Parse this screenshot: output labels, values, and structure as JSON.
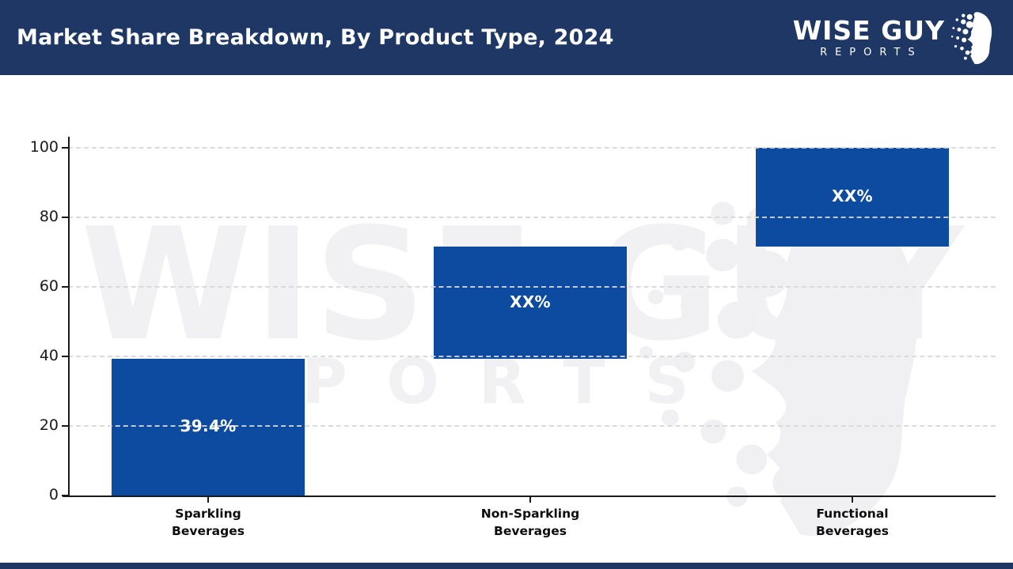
{
  "header": {
    "title": "Market Share Breakdown, By Product Type, 2024",
    "background_color": "#1e3764",
    "logo": {
      "wordmark": "WISE GUY",
      "subtext": "REPORTS"
    }
  },
  "watermark": {
    "wordmark": "WISE GUY",
    "subtext": "REPORTS"
  },
  "chart_data": {
    "type": "bar",
    "subtype": "waterfall",
    "title": "Market Share Breakdown, By Product Type, 2024",
    "categories": [
      "Sparkling\nBeverages",
      "Non-Sparkling\nBeverages",
      "Functional\nBeverages"
    ],
    "bars": [
      {
        "category": "Sparkling Beverages",
        "start": 0,
        "end": 39.4,
        "label": "39.4%"
      },
      {
        "category": "Non-Sparkling Beverages",
        "start": 39.4,
        "end": 71.6,
        "label": "XX%"
      },
      {
        "category": "Functional Beverages",
        "start": 71.6,
        "end": 100,
        "label": "XX%"
      }
    ],
    "xlabel": "",
    "ylabel": "",
    "ylim": [
      0,
      100
    ],
    "yticks": [
      0,
      20,
      40,
      60,
      80,
      100
    ],
    "grid": "horizontal-dashed",
    "legend": "none",
    "bar_color": "#0d4ba0",
    "bar_label_color": "#ffffff",
    "axis_color": "#1a1a1a"
  },
  "footer": {
    "background_color": "#1e3764"
  }
}
